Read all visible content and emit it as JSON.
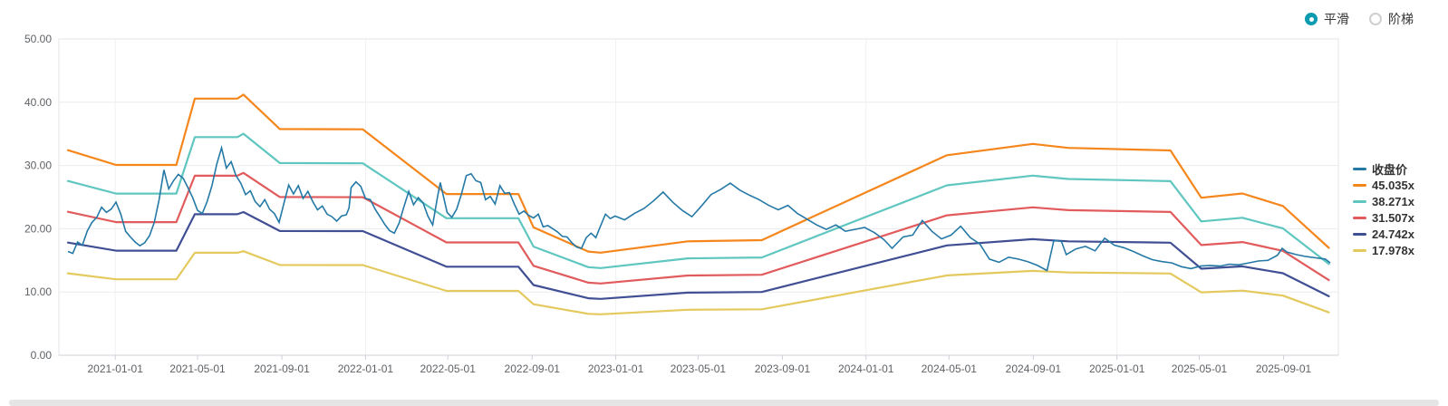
{
  "controls": {
    "options": [
      {
        "label": "平滑",
        "selected": true
      },
      {
        "label": "阶梯",
        "selected": false
      }
    ]
  },
  "legend": {
    "items": [
      {
        "label": "收盘价",
        "color": "#2579a6"
      },
      {
        "label": "45.035x",
        "color": "#f5861b"
      },
      {
        "label": "38.271x",
        "color": "#5fc6c0"
      },
      {
        "label": "31.507x",
        "color": "#e25b5c"
      },
      {
        "label": "24.742x",
        "color": "#404f94"
      },
      {
        "label": "17.978x",
        "color": "#e4c95e"
      }
    ]
  },
  "chart_data": {
    "type": "line",
    "title": "",
    "xlabel": "",
    "ylabel": "",
    "grid": true,
    "legend_position": "right",
    "x_range": [
      "2020-10-24",
      "2025-11-08"
    ],
    "y_axis": {
      "min": 0,
      "max": 50,
      "tick_values": [
        0,
        10,
        20,
        30,
        40,
        50
      ],
      "tick_labels": [
        "0.00",
        "10.00",
        "20.00",
        "30.00",
        "40.00",
        "50.00"
      ]
    },
    "x_axis": {
      "tick_labels": [
        "2021-01-01",
        "2021-05-01",
        "2021-09-01",
        "2022-01-01",
        "2022-05-01",
        "2022-09-01",
        "2023-01-01",
        "2023-05-01",
        "2023-09-01",
        "2024-01-01",
        "2024-05-01",
        "2024-09-01",
        "2025-01-01",
        "2025-05-01",
        "2025-09-01"
      ],
      "year_gridlines": [
        "2021-01-01",
        "2022-01-01",
        "2023-01-01",
        "2024-01-01",
        "2025-01-01"
      ]
    },
    "bands": {
      "note": "valuation bands = base_points value × multiple",
      "multiples": [
        45.035,
        38.271,
        31.507,
        24.742,
        17.978
      ],
      "colors": [
        "#f5861b",
        "#5fc6c0",
        "#e25b5c",
        "#404f94",
        "#e4c95e"
      ],
      "base_points": [
        [
          "2020-10-24",
          0.72
        ],
        [
          "2021-01-02",
          0.668
        ],
        [
          "2021-03-31",
          0.668
        ],
        [
          "2021-04-27",
          0.901
        ],
        [
          "2021-06-28",
          0.901
        ],
        [
          "2021-07-07",
          0.915
        ],
        [
          "2021-08-29",
          0.794
        ],
        [
          "2021-12-28",
          0.793
        ],
        [
          "2022-04-29",
          0.566
        ],
        [
          "2022-08-12",
          0.566
        ],
        [
          "2022-09-03",
          0.449
        ],
        [
          "2022-11-22",
          0.364
        ],
        [
          "2022-12-10",
          0.36
        ],
        [
          "2023-04-16",
          0.4
        ],
        [
          "2023-08-02",
          0.404
        ],
        [
          "2024-04-28",
          0.702
        ],
        [
          "2024-08-31",
          0.742
        ],
        [
          "2024-10-22",
          0.728
        ],
        [
          "2025-03-20",
          0.719
        ],
        [
          "2025-05-04",
          0.553
        ],
        [
          "2025-07-03",
          0.568
        ],
        [
          "2025-08-31",
          0.524
        ],
        [
          "2025-11-06",
          0.377
        ]
      ]
    },
    "series": [
      {
        "name": "收盘价",
        "color": "#2579a6",
        "points": [
          [
            "2020-10-24",
            16.4
          ],
          [
            "2020-10-31",
            16.1
          ],
          [
            "2020-11-07",
            17.9
          ],
          [
            "2020-11-14",
            17.4
          ],
          [
            "2020-11-21",
            19.6
          ],
          [
            "2020-11-28",
            21.0
          ],
          [
            "2020-12-05",
            21.8
          ],
          [
            "2020-12-12",
            23.4
          ],
          [
            "2020-12-19",
            22.6
          ],
          [
            "2020-12-26",
            23.1
          ],
          [
            "2021-01-02",
            24.2
          ],
          [
            "2021-01-09",
            22.3
          ],
          [
            "2021-01-16",
            19.6
          ],
          [
            "2021-01-23",
            18.7
          ],
          [
            "2021-01-30",
            17.9
          ],
          [
            "2021-02-06",
            17.3
          ],
          [
            "2021-02-13",
            17.8
          ],
          [
            "2021-02-20",
            18.9
          ],
          [
            "2021-02-27",
            21.0
          ],
          [
            "2021-03-06",
            24.6
          ],
          [
            "2021-03-13",
            29.3
          ],
          [
            "2021-03-20",
            26.3
          ],
          [
            "2021-03-27",
            27.6
          ],
          [
            "2021-04-03",
            28.6
          ],
          [
            "2021-04-10",
            28.0
          ],
          [
            "2021-04-17",
            26.5
          ],
          [
            "2021-04-24",
            24.9
          ],
          [
            "2021-05-01",
            22.9
          ],
          [
            "2021-05-08",
            22.4
          ],
          [
            "2021-05-15",
            24.3
          ],
          [
            "2021-05-22",
            26.8
          ],
          [
            "2021-05-29",
            30.2
          ],
          [
            "2021-06-05",
            32.8
          ],
          [
            "2021-06-12",
            29.6
          ],
          [
            "2021-06-19",
            30.6
          ],
          [
            "2021-06-26",
            28.4
          ],
          [
            "2021-07-03",
            27.2
          ],
          [
            "2021-07-10",
            25.4
          ],
          [
            "2021-07-17",
            26.0
          ],
          [
            "2021-07-24",
            24.3
          ],
          [
            "2021-07-31",
            23.5
          ],
          [
            "2021-08-07",
            24.6
          ],
          [
            "2021-08-14",
            23.1
          ],
          [
            "2021-08-21",
            22.4
          ],
          [
            "2021-08-28",
            21.0
          ],
          [
            "2021-09-04",
            24.0
          ],
          [
            "2021-09-11",
            26.9
          ],
          [
            "2021-09-18",
            25.5
          ],
          [
            "2021-09-25",
            26.8
          ],
          [
            "2021-10-02",
            24.8
          ],
          [
            "2021-10-09",
            25.9
          ],
          [
            "2021-10-16",
            24.3
          ],
          [
            "2021-10-23",
            23.0
          ],
          [
            "2021-10-30",
            23.6
          ],
          [
            "2021-11-06",
            22.3
          ],
          [
            "2021-11-13",
            21.9
          ],
          [
            "2021-11-20",
            21.2
          ],
          [
            "2021-11-27",
            22.0
          ],
          [
            "2021-12-04",
            22.2
          ],
          [
            "2021-12-08",
            23.3
          ],
          [
            "2021-12-11",
            26.5
          ],
          [
            "2021-12-18",
            27.4
          ],
          [
            "2021-12-25",
            26.7
          ],
          [
            "2022-01-01",
            24.8
          ],
          [
            "2022-01-08",
            24.6
          ],
          [
            "2022-01-15",
            23.1
          ],
          [
            "2022-01-22",
            21.9
          ],
          [
            "2022-01-29",
            20.7
          ],
          [
            "2022-02-05",
            19.7
          ],
          [
            "2022-02-12",
            19.3
          ],
          [
            "2022-02-19",
            20.9
          ],
          [
            "2022-02-26",
            23.5
          ],
          [
            "2022-03-05",
            25.9
          ],
          [
            "2022-03-12",
            23.8
          ],
          [
            "2022-03-19",
            24.9
          ],
          [
            "2022-03-26",
            24.1
          ],
          [
            "2022-04-02",
            22.0
          ],
          [
            "2022-04-09",
            20.6
          ],
          [
            "2022-04-16",
            25.0
          ],
          [
            "2022-04-20",
            27.3
          ],
          [
            "2022-04-30",
            22.6
          ],
          [
            "2022-05-07",
            21.8
          ],
          [
            "2022-05-14",
            23.1
          ],
          [
            "2022-05-21",
            25.5
          ],
          [
            "2022-05-28",
            28.4
          ],
          [
            "2022-06-04",
            28.7
          ],
          [
            "2022-06-11",
            27.6
          ],
          [
            "2022-06-18",
            27.3
          ],
          [
            "2022-06-25",
            24.6
          ],
          [
            "2022-07-02",
            25.1
          ],
          [
            "2022-07-09",
            23.9
          ],
          [
            "2022-07-16",
            26.8
          ],
          [
            "2022-07-23",
            25.6
          ],
          [
            "2022-07-30",
            25.7
          ],
          [
            "2022-08-06",
            23.9
          ],
          [
            "2022-08-13",
            22.3
          ],
          [
            "2022-08-20",
            22.8
          ],
          [
            "2022-08-27",
            22.1
          ],
          [
            "2022-09-03",
            21.7
          ],
          [
            "2022-09-10",
            22.3
          ],
          [
            "2022-09-17",
            20.3
          ],
          [
            "2022-09-24",
            20.5
          ],
          [
            "2022-10-08",
            19.5
          ],
          [
            "2022-10-15",
            18.8
          ],
          [
            "2022-10-22",
            18.7
          ],
          [
            "2022-10-29",
            17.8
          ],
          [
            "2022-11-05",
            17.1
          ],
          [
            "2022-11-12",
            16.9
          ],
          [
            "2022-11-19",
            18.6
          ],
          [
            "2022-11-26",
            19.3
          ],
          [
            "2022-12-03",
            18.6
          ],
          [
            "2022-12-10",
            20.5
          ],
          [
            "2022-12-17",
            22.3
          ],
          [
            "2022-12-24",
            21.6
          ],
          [
            "2022-12-31",
            22.0
          ],
          [
            "2023-01-14",
            21.4
          ],
          [
            "2023-01-28",
            22.4
          ],
          [
            "2023-02-11",
            23.2
          ],
          [
            "2023-02-25",
            24.4
          ],
          [
            "2023-03-11",
            25.8
          ],
          [
            "2023-03-25",
            24.2
          ],
          [
            "2023-04-08",
            22.9
          ],
          [
            "2023-04-22",
            21.9
          ],
          [
            "2023-05-06",
            23.6
          ],
          [
            "2023-05-20",
            25.4
          ],
          [
            "2023-06-03",
            26.2
          ],
          [
            "2023-06-17",
            27.2
          ],
          [
            "2023-07-01",
            26.1
          ],
          [
            "2023-07-15",
            25.3
          ],
          [
            "2023-07-29",
            24.6
          ],
          [
            "2023-08-12",
            23.7
          ],
          [
            "2023-08-26",
            23.0
          ],
          [
            "2023-09-09",
            23.7
          ],
          [
            "2023-09-23",
            22.4
          ],
          [
            "2023-10-07",
            21.5
          ],
          [
            "2023-10-21",
            20.6
          ],
          [
            "2023-11-04",
            19.9
          ],
          [
            "2023-11-18",
            20.6
          ],
          [
            "2023-12-02",
            19.6
          ],
          [
            "2023-12-16",
            19.9
          ],
          [
            "2023-12-30",
            20.2
          ],
          [
            "2024-01-13",
            19.4
          ],
          [
            "2024-01-27",
            18.3
          ],
          [
            "2024-02-08",
            16.9
          ],
          [
            "2024-02-24",
            18.7
          ],
          [
            "2024-03-09",
            19.0
          ],
          [
            "2024-03-23",
            21.3
          ],
          [
            "2024-04-06",
            19.6
          ],
          [
            "2024-04-20",
            18.4
          ],
          [
            "2024-05-04",
            19.0
          ],
          [
            "2024-05-18",
            20.4
          ],
          [
            "2024-06-01",
            18.6
          ],
          [
            "2024-06-15",
            17.6
          ],
          [
            "2024-06-29",
            15.2
          ],
          [
            "2024-07-13",
            14.7
          ],
          [
            "2024-07-27",
            15.5
          ],
          [
            "2024-08-10",
            15.2
          ],
          [
            "2024-08-24",
            14.8
          ],
          [
            "2024-09-07",
            14.2
          ],
          [
            "2024-09-21",
            13.4
          ],
          [
            "2024-10-01",
            18.2
          ],
          [
            "2024-10-12",
            18.0
          ],
          [
            "2024-10-19",
            15.9
          ],
          [
            "2024-11-02",
            16.8
          ],
          [
            "2024-11-16",
            17.2
          ],
          [
            "2024-11-30",
            16.5
          ],
          [
            "2024-12-14",
            18.5
          ],
          [
            "2024-12-28",
            17.4
          ],
          [
            "2025-01-11",
            17.0
          ],
          [
            "2025-01-25",
            16.4
          ],
          [
            "2025-02-08",
            15.7
          ],
          [
            "2025-02-22",
            15.1
          ],
          [
            "2025-03-08",
            14.8
          ],
          [
            "2025-03-22",
            14.6
          ],
          [
            "2025-04-05",
            14.0
          ],
          [
            "2025-04-19",
            13.7
          ],
          [
            "2025-05-03",
            14.1
          ],
          [
            "2025-05-17",
            14.2
          ],
          [
            "2025-05-31",
            14.1
          ],
          [
            "2025-06-14",
            14.4
          ],
          [
            "2025-06-28",
            14.3
          ],
          [
            "2025-07-12",
            14.6
          ],
          [
            "2025-07-26",
            14.9
          ],
          [
            "2025-08-09",
            15.0
          ],
          [
            "2025-08-23",
            15.8
          ],
          [
            "2025-08-30",
            16.9
          ],
          [
            "2025-09-06",
            16.3
          ],
          [
            "2025-09-20",
            15.9
          ],
          [
            "2025-10-04",
            15.6
          ],
          [
            "2025-10-18",
            15.4
          ],
          [
            "2025-11-01",
            15.2
          ],
          [
            "2025-11-08",
            14.6
          ]
        ]
      }
    ]
  }
}
